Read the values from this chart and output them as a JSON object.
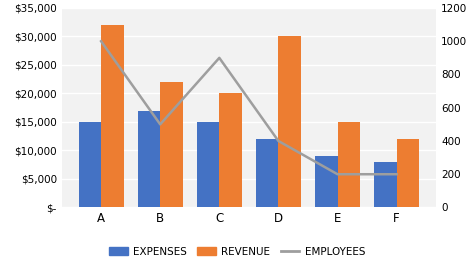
{
  "categories": [
    "A",
    "B",
    "C",
    "D",
    "E",
    "F"
  ],
  "expenses": [
    15000,
    17000,
    15000,
    12000,
    9000,
    8000
  ],
  "revenue": [
    32000,
    22000,
    20000,
    30000,
    15000,
    12000
  ],
  "employees": [
    1000,
    500,
    900,
    400,
    200,
    200
  ],
  "bar_color_expenses": "#4472C4",
  "bar_color_revenue": "#ED7D31",
  "line_color_employees": "#9E9E9E",
  "background_color": "#F2F2F2",
  "plot_bg_color": "#F2F2F2",
  "ylim_left": [
    0,
    35000
  ],
  "ylim_right": [
    0,
    1200
  ],
  "yticks_left": [
    0,
    5000,
    10000,
    15000,
    20000,
    25000,
    30000,
    35000
  ],
  "yticks_right": [
    0,
    200,
    400,
    600,
    800,
    1000,
    1200
  ],
  "legend_labels": [
    "EXPENSES",
    "REVENUE",
    "EMPLOYEES"
  ],
  "bar_width": 0.38
}
